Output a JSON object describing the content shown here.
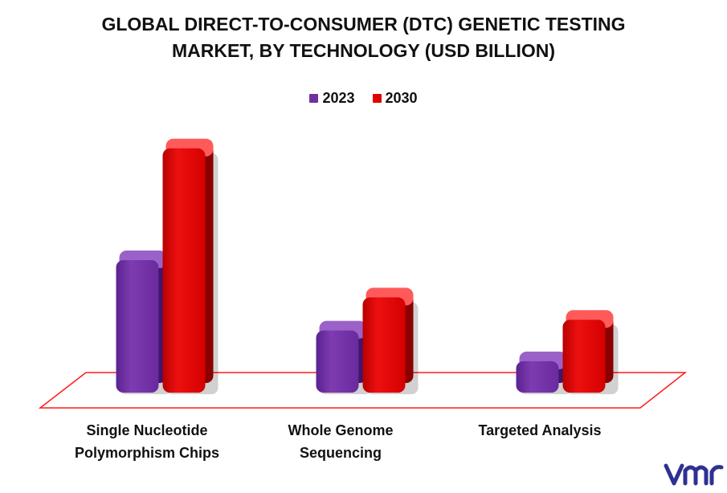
{
  "chart_data": {
    "type": "bar",
    "title_lines": [
      "GLOBAL DIRECT-TO-CONSUMER (DTC) GENETIC TESTING",
      "MARKET, BY TECHNOLOGY (USD BILLION)"
    ],
    "categories": [
      "Single Nucleotide Polymorphism Chips",
      "Whole Genome Sequencing",
      "Targeted Analysis"
    ],
    "category_lines": [
      [
        "Single Nucleotide",
        "Polymorphism Chips"
      ],
      [
        "Whole Genome",
        "Sequencing"
      ],
      [
        "Targeted Analysis"
      ]
    ],
    "series": [
      {
        "name": "2023",
        "color": "#7030a0",
        "values": [
          1.6,
          0.75,
          0.38
        ]
      },
      {
        "name": "2030",
        "color": "#e00000",
        "values": [
          2.95,
          1.15,
          0.88
        ]
      }
    ],
    "ylim": [
      0,
      3.2
    ],
    "xlabel": "",
    "ylabel": "",
    "legend": "top-center",
    "grid": false
  },
  "brand": {
    "logo_text": "vmr",
    "logo_color": "#2e3192"
  }
}
